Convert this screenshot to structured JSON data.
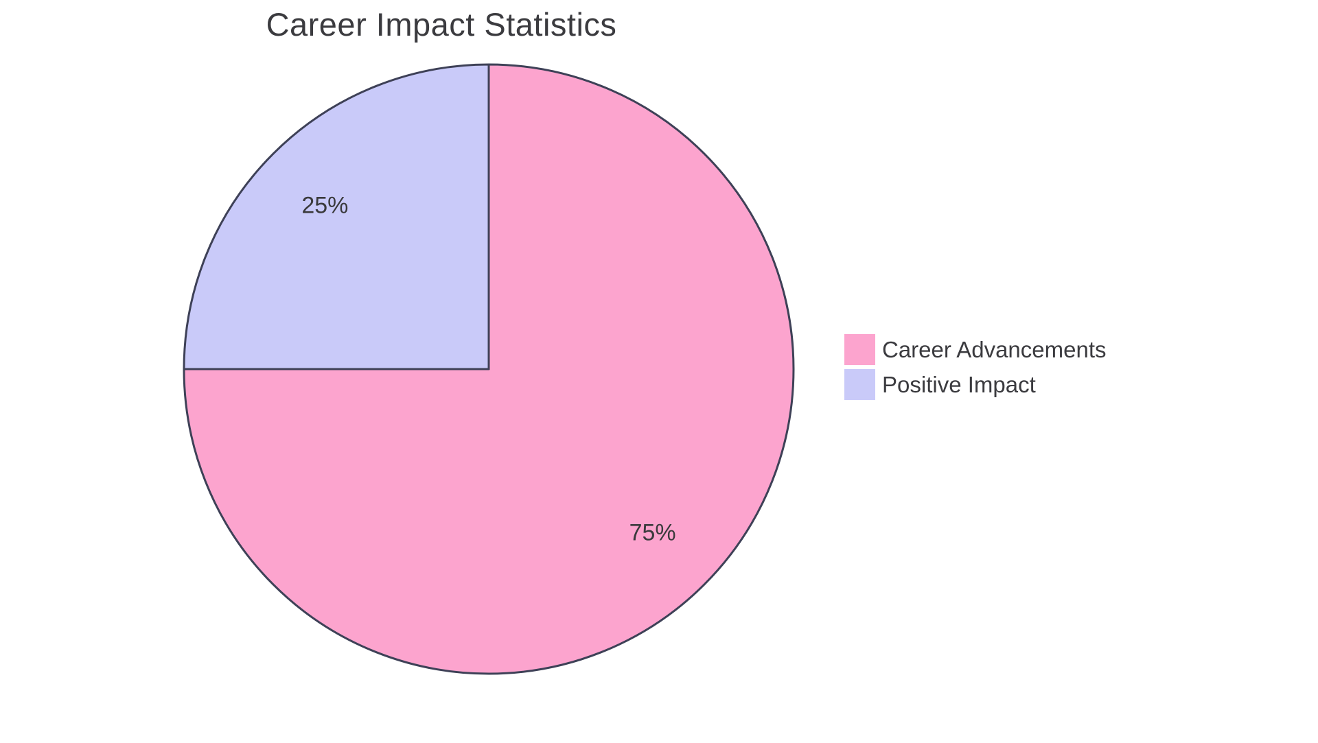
{
  "title": "Career Impact Statistics",
  "colors": {
    "background": "#ffffff",
    "slice_border": "#3e4157",
    "text": "#3a3a3c"
  },
  "chart_data": {
    "type": "pie",
    "title": "Career Impact Statistics",
    "labels": [
      "Career Advancements",
      "Positive Impact"
    ],
    "values": [
      75,
      25
    ],
    "value_labels": [
      "75%",
      "25%"
    ],
    "colors": [
      "#fca4ce",
      "#c9caf9"
    ],
    "start_angle_deg": 0,
    "direction": "clockwise",
    "slice_border_color": "#3e4157",
    "slice_border_width": 3,
    "label_radius_fraction": 0.76,
    "legend_position": "right",
    "grid": false
  }
}
